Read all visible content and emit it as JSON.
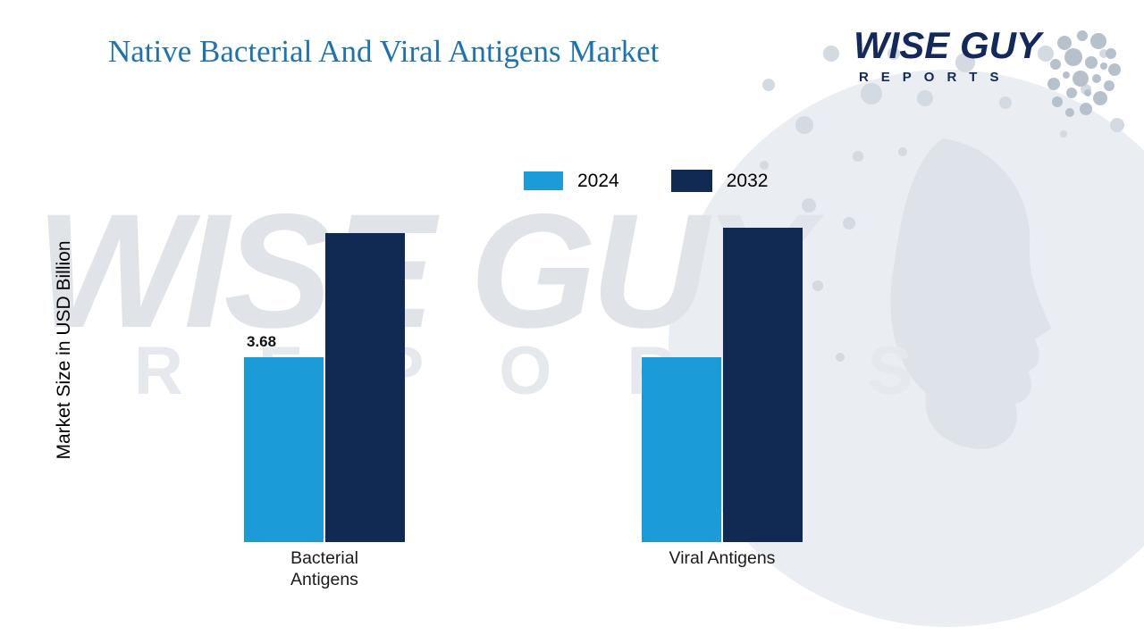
{
  "header": {
    "title": "Native Bacterial And Viral Antigens Market"
  },
  "brand": {
    "name": "WISE GUY",
    "subname": "REPORTS"
  },
  "watermark": {
    "line1": "WISE GUY",
    "line2": "REPORTS"
  },
  "colors": {
    "title_blue": "#1d72b2",
    "logo_navy": "#13295c",
    "bar_2024": "#1b9bd8",
    "bar_2032": "#112a54"
  },
  "chart_data": {
    "type": "bar",
    "title": "Native Bacterial And Viral Antigens Market",
    "xlabel": "",
    "ylabel": "Market Size in USD Billion",
    "categories": [
      "Bacterial Antigens",
      "Viral Antigens"
    ],
    "series": [
      {
        "name": "2024",
        "color": "#1b9bd8",
        "values": [
          3.68,
          3.68
        ]
      },
      {
        "name": "2032",
        "color": "#112a54",
        "values": [
          6.15,
          6.25
        ]
      }
    ],
    "annotations": [
      {
        "text": "3.68",
        "series": "2024",
        "category": "Bacterial Antigens"
      }
    ],
    "ylim": [
      0,
      6.7
    ],
    "grid": false,
    "legend_position": "top"
  }
}
